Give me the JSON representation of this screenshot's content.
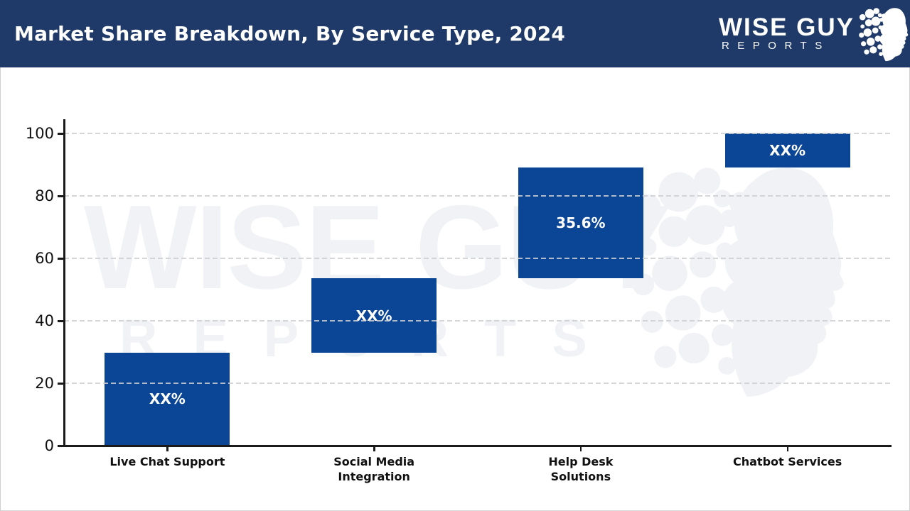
{
  "header": {
    "title": "Market Share Breakdown, By Service Type, 2024",
    "logo": {
      "line1": "WISE GUY",
      "line2": "REPORTS"
    }
  },
  "watermark": {
    "line1": "WISE GUY",
    "line2": "REPORTS"
  },
  "colors": {
    "header_bg": "#1f3a68",
    "title_color": "#ffffff",
    "bar": "#0b4596",
    "bar_label": "#ffffff",
    "axis": "#1a1a1a",
    "tick_label": "#111111",
    "grid": "#d8d8d8",
    "watermark": "#f1f2f5"
  },
  "chart_data": {
    "type": "bar",
    "subtype": "waterfall-stacked",
    "title": "Market Share Breakdown, By Service Type, 2024",
    "xlabel": "",
    "ylabel": "",
    "ylim": [
      0,
      105
    ],
    "yticks": [
      0,
      20,
      40,
      60,
      80,
      100
    ],
    "grid": "horizontal-dashed",
    "legend": "none",
    "categories": [
      {
        "name": "Live Chat Support",
        "lines": [
          "Live Chat Support"
        ]
      },
      {
        "name": "Social Media Integration",
        "lines": [
          "Social Media",
          "Integration"
        ]
      },
      {
        "name": "Help Desk Solutions",
        "lines": [
          "Help Desk",
          "Solutions"
        ]
      },
      {
        "name": "Chatbot Services",
        "lines": [
          "Chatbot Services"
        ]
      }
    ],
    "segments": [
      {
        "category": "Live Chat Support",
        "start": 0,
        "end": 29.8,
        "value": 29.8,
        "label": "XX%"
      },
      {
        "category": "Social Media Integration",
        "start": 29.8,
        "end": 53.6,
        "value": 23.8,
        "label": "XX%"
      },
      {
        "category": "Help Desk Solutions",
        "start": 53.6,
        "end": 89.2,
        "value": 35.6,
        "label": "35.6%"
      },
      {
        "category": "Chatbot Services",
        "start": 89.2,
        "end": 100,
        "value": 10.8,
        "label": "XX%"
      }
    ]
  }
}
